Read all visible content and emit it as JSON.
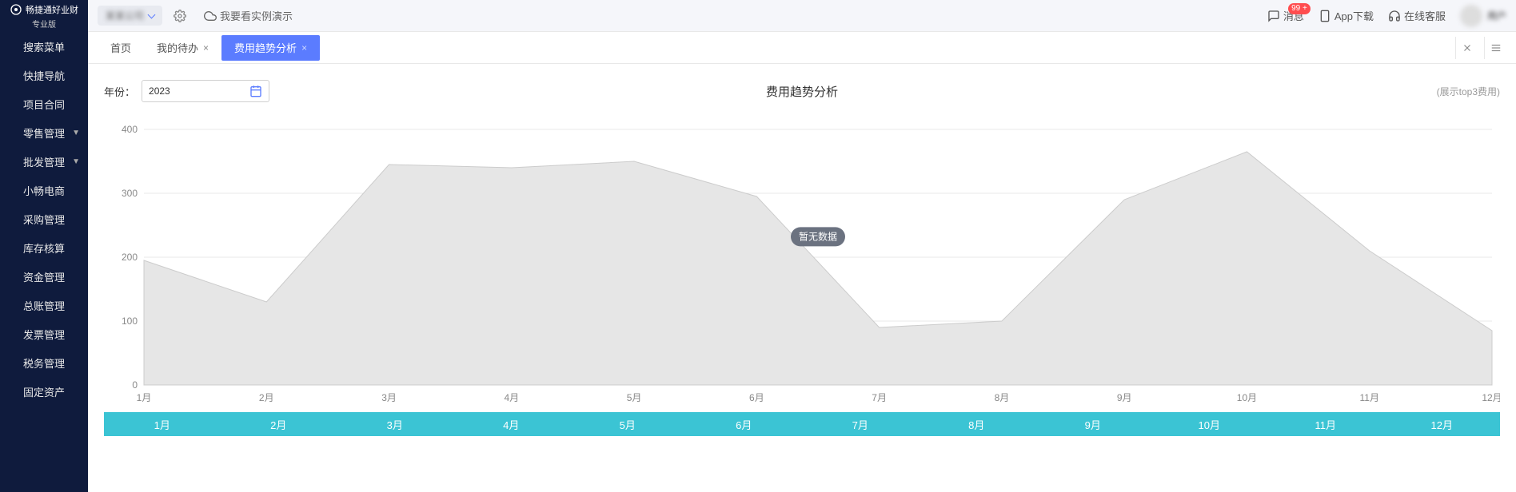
{
  "brand": {
    "name": "畅捷通好业财",
    "edition": "专业版"
  },
  "sidebar": {
    "items": [
      {
        "label": "搜索菜单",
        "arrow": false
      },
      {
        "label": "快捷导航",
        "arrow": false
      },
      {
        "label": "项目合同",
        "arrow": false
      },
      {
        "label": "零售管理",
        "arrow": true
      },
      {
        "label": "批发管理",
        "arrow": true
      },
      {
        "label": "小畅电商",
        "arrow": false
      },
      {
        "label": "采购管理",
        "arrow": false
      },
      {
        "label": "库存核算",
        "arrow": false
      },
      {
        "label": "资金管理",
        "arrow": false
      },
      {
        "label": "总账管理",
        "arrow": false
      },
      {
        "label": "发票管理",
        "arrow": false
      },
      {
        "label": "税务管理",
        "arrow": false
      },
      {
        "label": "固定资产",
        "arrow": false
      }
    ]
  },
  "header": {
    "company": "某某公司",
    "demo_link": "我要看实例演示",
    "actions": {
      "message": "消息",
      "message_badge": "99 +",
      "app": "App下载",
      "service": "在线客服"
    },
    "user_name": "用户"
  },
  "tabs": {
    "items": [
      {
        "label": "首页",
        "closable": false,
        "active": false
      },
      {
        "label": "我的待办",
        "closable": true,
        "active": false
      },
      {
        "label": "费用趋势分析",
        "closable": true,
        "active": true
      }
    ]
  },
  "controls": {
    "year_label": "年份：",
    "year_value": "2023",
    "chart_title": "费用趋势分析",
    "top3_note": "(展示top3费用)"
  },
  "chart": {
    "type": "area",
    "tooltip": "暂无数据",
    "y": {
      "min": 0,
      "max": 400,
      "step": 100,
      "ticks": [
        0,
        100,
        200,
        300,
        400
      ]
    },
    "x_labels": [
      "1月",
      "2月",
      "3月",
      "4月",
      "5月",
      "6月",
      "7月",
      "8月",
      "9月",
      "10月",
      "11月",
      "12月"
    ],
    "values": [
      195,
      130,
      345,
      340,
      350,
      295,
      90,
      100,
      290,
      365,
      210,
      85
    ],
    "area_fill": "#e6e6e6",
    "area_stroke": "#cccccc",
    "grid_color": "#e8e8e8",
    "axis_text_color": "#888888",
    "tooltip_bg": "#6b7280",
    "tooltip_text_color": "#ffffff",
    "background": "#ffffff"
  },
  "month_bar": {
    "items": [
      "1月",
      "2月",
      "3月",
      "4月",
      "5月",
      "6月",
      "7月",
      "8月",
      "9月",
      "10月",
      "11月",
      "12月"
    ],
    "bg": "#3bc4d4",
    "text_color": "#ffffff"
  }
}
